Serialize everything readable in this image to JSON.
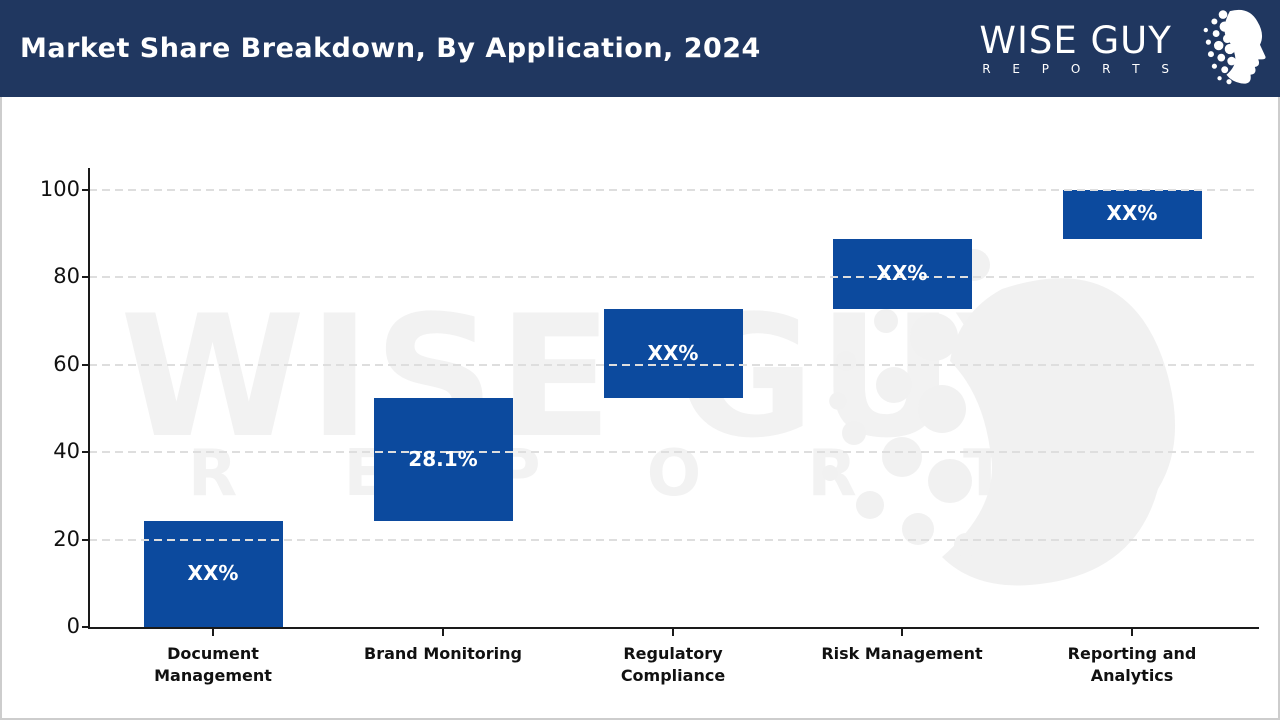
{
  "header": {
    "title": "Market Share Breakdown, By Application, 2024",
    "bg_color": "#203760",
    "logo": {
      "line1": "WISE GUY",
      "line2": "R E P O R T S"
    }
  },
  "watermark": {
    "line1": "WISE GUY",
    "line2": "R E P O R T S"
  },
  "chart_data": {
    "type": "bar",
    "subtype": "waterfall",
    "title": "Market Share Breakdown, By Application, 2024",
    "xlabel": "",
    "ylabel": "",
    "categories": [
      "Document\nManagement",
      "Brand Monitoring",
      "Regulatory\nCompliance",
      "Risk Management",
      "Reporting and\nAnalytics"
    ],
    "segments": [
      {
        "category": "Document Management",
        "start": 0,
        "end": 24.2,
        "value_label": "XX%"
      },
      {
        "category": "Brand Monitoring",
        "start": 24.2,
        "end": 52.3,
        "value_label": "28.1%"
      },
      {
        "category": "Regulatory Compliance",
        "start": 52.3,
        "end": 72.7,
        "value_label": "XX%"
      },
      {
        "category": "Risk Management",
        "start": 72.7,
        "end": 88.8,
        "value_label": "XX%"
      },
      {
        "category": "Reporting and Analytics",
        "start": 88.8,
        "end": 100.0,
        "value_label": "XX%"
      }
    ],
    "y_ticks": [
      0,
      20,
      40,
      60,
      80,
      100
    ],
    "ylim": [
      0,
      105
    ],
    "grid": true,
    "gridline_style": "dashed",
    "gridline_color": "#dedede",
    "bar_color": "#0c4a9e",
    "bar_label_color": "#ffffff",
    "legend": "none"
  }
}
